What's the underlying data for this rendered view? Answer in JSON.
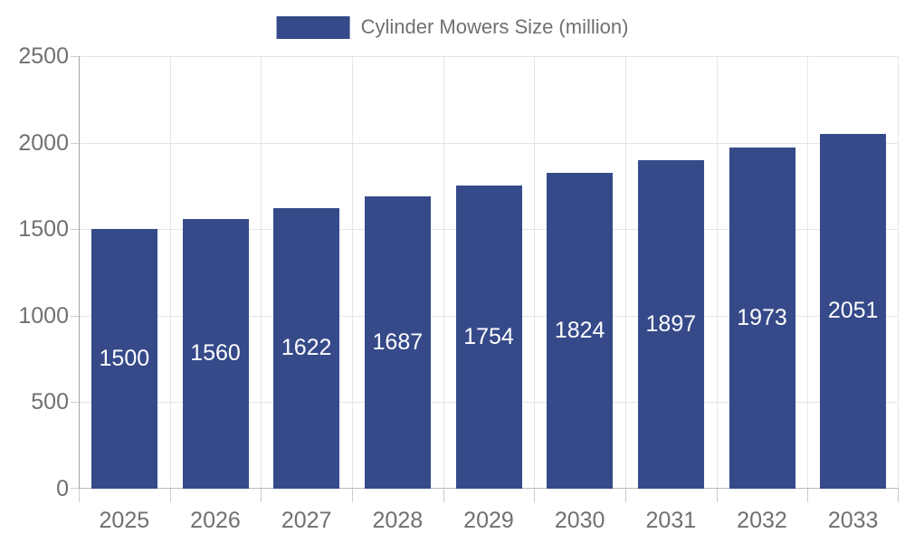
{
  "legend": {
    "label": "Cylinder Mowers Size (million)"
  },
  "chart_data": {
    "type": "bar",
    "title": "",
    "categories": [
      "2025",
      "2026",
      "2027",
      "2028",
      "2029",
      "2030",
      "2031",
      "2032",
      "2033"
    ],
    "series": [
      {
        "name": "Cylinder Mowers Size (million)",
        "values": [
          1500,
          1560,
          1622,
          1687,
          1754,
          1824,
          1897,
          1973,
          2051
        ]
      }
    ],
    "value_labels": [
      "1500",
      "1560",
      "1622",
      "1687",
      "1754",
      "1824",
      "1897",
      "1973",
      "2051"
    ],
    "xlabel": "",
    "ylabel": "",
    "ylim": [
      0,
      2500
    ],
    "yticks": [
      0,
      500,
      1000,
      1500,
      2000,
      2500
    ],
    "ytick_labels": [
      "0",
      "500",
      "1000",
      "1500",
      "2000",
      "2500"
    ],
    "grid": true,
    "legend_position": "top-center",
    "bar_width_fraction": 0.725,
    "colors": {
      "bar": "#364A8A",
      "value_label": "#FFFFFF",
      "axis_text": "#707070",
      "gridline": "#E5E5E5",
      "y_axis_line": "#A4A4A4",
      "x_axis_line": "#BBBBBB",
      "tick": "#CCCCCC",
      "background": "#FFFFFF"
    }
  }
}
